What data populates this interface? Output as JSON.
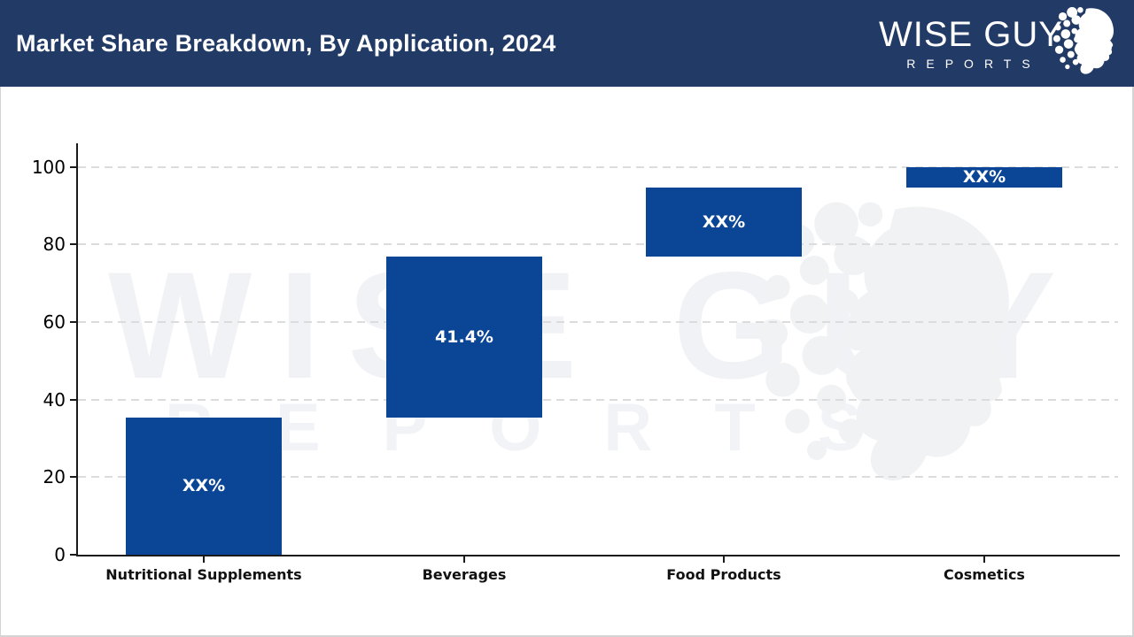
{
  "header": {
    "title": "Market Share Breakdown, By Application, 2024",
    "logo": {
      "line1": "WISE GUY",
      "line2": "REPORTS"
    }
  },
  "watermark": {
    "line1": "WISE GUY",
    "line2": "REPORTS"
  },
  "colors": {
    "header_bg": "#213a66",
    "bar": "#0a4596",
    "grid": "#dcdcdc",
    "axis": "#1a1a1a",
    "bar_label": "#ffffff",
    "watermark": "#f1f2f4"
  },
  "chart_data": {
    "type": "bar",
    "subtype": "waterfall",
    "title": "Market Share Breakdown, By Application, 2024",
    "categories": [
      "Nutritional Supplements",
      "Beverages",
      "Food Products",
      "Cosmetics"
    ],
    "segments": [
      {
        "category": "Nutritional Supplements",
        "start": 0,
        "end": 35.4,
        "height": 35.4,
        "value_label": "XX%"
      },
      {
        "category": "Beverages",
        "start": 35.4,
        "end": 76.8,
        "height": 41.4,
        "value_label": "41.4%"
      },
      {
        "category": "Food Products",
        "start": 76.8,
        "end": 94.7,
        "height": 17.9,
        "value_label": "XX%"
      },
      {
        "category": "Cosmetics",
        "start": 94.7,
        "end": 100,
        "height": 5.3,
        "value_label": "XX%"
      }
    ],
    "yticks": [
      0,
      20,
      40,
      60,
      80,
      100
    ],
    "ylim": [
      0,
      105
    ],
    "xlabel": "",
    "ylabel": "",
    "grid": "horizontal-dashed",
    "legend": "none",
    "bar_color": "#0a4596"
  }
}
